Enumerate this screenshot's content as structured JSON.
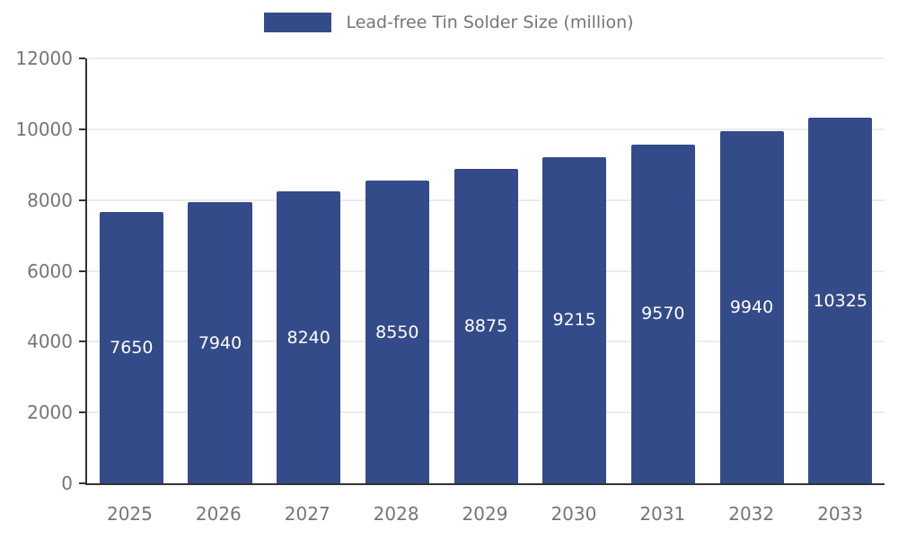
{
  "legend": {
    "label": "Lead-free Tin Solder Size (million)"
  },
  "chart_data": {
    "type": "bar",
    "title": "Lead-free Tin Solder Size (million)",
    "categories": [
      "2025",
      "2026",
      "2027",
      "2028",
      "2029",
      "2030",
      "2031",
      "2032",
      "2033"
    ],
    "values": [
      7650,
      7940,
      8240,
      8550,
      8875,
      9215,
      9570,
      9940,
      10325
    ],
    "xlabel": "",
    "ylabel": "",
    "ylim": [
      0,
      12000
    ],
    "ytick_step": 2000,
    "yticks": [
      0,
      2000,
      4000,
      6000,
      8000,
      10000,
      12000
    ],
    "grid": true,
    "legend_position": "top-center",
    "bar_color": "#344b8a",
    "bar_label_color": "#ffffff",
    "axis_text_color": "#757575",
    "gridline_color": "#d9d9d9",
    "axis_line_color": "#333333"
  }
}
